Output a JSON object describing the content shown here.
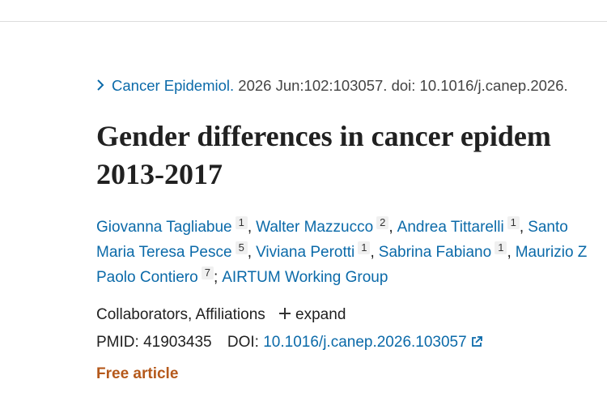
{
  "citation": {
    "journal": "Cancer Epidemiol.",
    "details": " 2026 Jun:102:103057. doi: 10.1016/j.canep.2026."
  },
  "title": [
    "Gender differences in cancer epidem",
    "2013-2017"
  ],
  "author_lines": [
    [
      {
        "name": "Giovanna Tagliabue",
        "affiliation": "1",
        "separator": ","
      },
      {
        "name": "Walter Mazzucco",
        "affiliation": "2",
        "separator": ","
      },
      {
        "name": "Andrea Tittarelli",
        "affiliation": "1",
        "separator": ","
      },
      {
        "name": "Santo"
      }
    ],
    [
      {
        "name": "Maria Teresa Pesce",
        "affiliation": "5",
        "separator": ","
      },
      {
        "name": "Viviana Perotti",
        "affiliation": "1",
        "separator": ","
      },
      {
        "name": "Sabrina Fabiano",
        "affiliation": "1",
        "separator": ","
      },
      {
        "name": "Maurizio Z"
      }
    ],
    [
      {
        "name": "Paolo Contiero",
        "affiliation": "7",
        "separator": ";"
      },
      {
        "name": "AIRTUM Working Group"
      }
    ]
  ],
  "collaborators": {
    "label": "Collaborators, Affiliations",
    "toggle": "expand"
  },
  "identifiers": {
    "pmid_label": "PMID:",
    "pmid": "41903435",
    "doi_label": "DOI:",
    "doi": "10.1016/j.canep.2026.103057"
  },
  "free_article": "Free article"
}
